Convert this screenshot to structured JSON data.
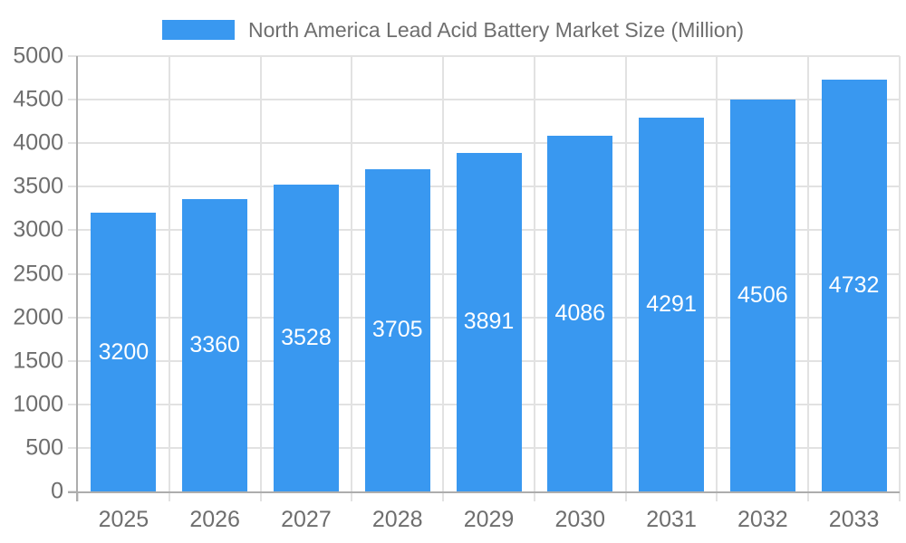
{
  "legend": {
    "label": "North America Lead Acid Battery Market Size (Million)"
  },
  "chart_data": {
    "type": "bar",
    "title": "North America Lead Acid Battery Market Size (Million)",
    "categories": [
      "2025",
      "2026",
      "2027",
      "2028",
      "2029",
      "2030",
      "2031",
      "2032",
      "2033"
    ],
    "values": [
      3200,
      3360,
      3528,
      3705,
      3891,
      4086,
      4291,
      4506,
      4732
    ],
    "value_labels": [
      "3200",
      "3360",
      "3528",
      "3705",
      "3891",
      "4086",
      "4291",
      "4506",
      "4732"
    ],
    "xlabel": "",
    "ylabel": "",
    "ylim": [
      0,
      5000
    ],
    "ytick_step": 500,
    "ytick_labels": [
      "0",
      "500",
      "1000",
      "1500",
      "2000",
      "2500",
      "3000",
      "3500",
      "4000",
      "4500",
      "5000"
    ],
    "grid": true,
    "legend_position": "top",
    "colors": {
      "bar": "#3998F0",
      "value_label": "#FFFFFF",
      "gridline": "#E2E2E2",
      "axis": "#ADADAD",
      "tick_label": "#6E6E6E",
      "legend_text": "#6E6E6E",
      "background": "#FFFFFF"
    }
  }
}
